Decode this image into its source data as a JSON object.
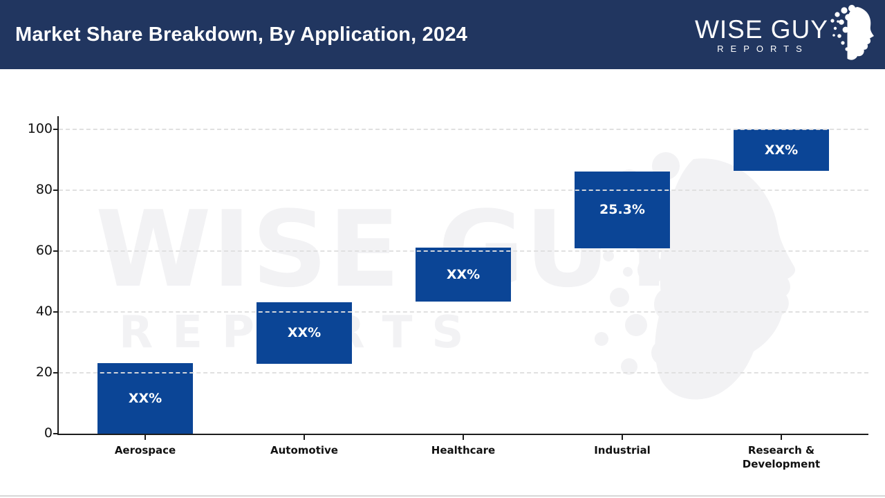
{
  "header": {
    "title": "Market Share Breakdown, By Application, 2024",
    "logo": {
      "line1": "WISE GUY",
      "line2": "REPORTS"
    }
  },
  "watermark": {
    "line1": "WISE GUY",
    "line2": "REPORTS"
  },
  "colors": {
    "header_bg": "#213660",
    "bar": "#0b4596",
    "axis": "#1c1c1c",
    "grid": "#dedede",
    "watermark": "#f2f2f4",
    "bar_label_text": "#ffffff"
  },
  "chart_data": {
    "type": "bar",
    "variant": "waterfall",
    "title": "Market Share Breakdown, By Application, 2024",
    "categories": [
      "Aerospace",
      "Automotive",
      "Healthcare",
      "Industrial",
      "Research & Development"
    ],
    "segments": [
      {
        "category": "Aerospace",
        "label_lines": [
          "Aerospace"
        ],
        "from": 0,
        "to": 23.2,
        "bar_label": "XX%"
      },
      {
        "category": "Automotive",
        "label_lines": [
          "Automotive"
        ],
        "from": 23.0,
        "to": 43.2,
        "bar_label": "XX%"
      },
      {
        "category": "Healthcare",
        "label_lines": [
          "Healthcare"
        ],
        "from": 43.4,
        "to": 61.1,
        "bar_label": "XX%"
      },
      {
        "category": "Industrial",
        "label_lines": [
          "Industrial"
        ],
        "from": 60.9,
        "to": 86.2,
        "bar_label": "25.3%",
        "value": 25.3
      },
      {
        "category": "Research & Development",
        "label_lines": [
          "Research &",
          "Development"
        ],
        "from": 86.3,
        "to": 100,
        "bar_label": "XX%"
      }
    ],
    "xlabel": "",
    "ylabel": "",
    "ylim": [
      0,
      100
    ],
    "yticks": [
      0,
      20,
      40,
      60,
      80,
      100
    ],
    "grid": "horizontal-dashed",
    "legend": "none"
  }
}
